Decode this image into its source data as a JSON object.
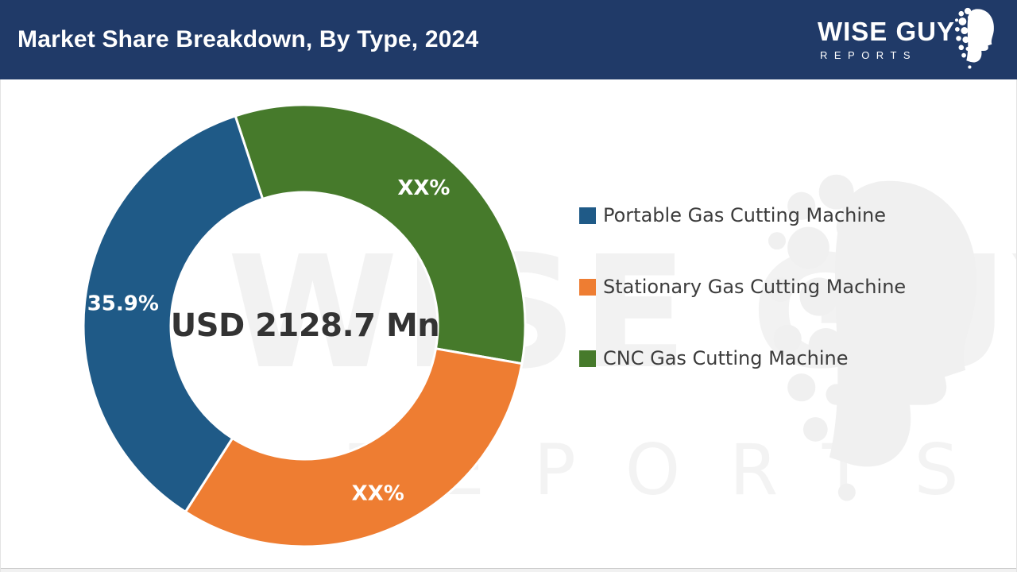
{
  "header": {
    "title": "Market Share Breakdown, By Type, 2024",
    "logo": {
      "name": "WISE GUY",
      "sub": "REPORTS"
    }
  },
  "watermark": {
    "line1": "WISE GUY",
    "line2": "REPORTS"
  },
  "chart_data": {
    "type": "donut",
    "title": "Market Share Breakdown, By Type, 2024",
    "center_label": "USD 2128.7 Mn",
    "legend_position": "right",
    "start_angle_deg": -18.2,
    "draw_order": [
      2,
      1,
      0
    ],
    "segments": [
      {
        "label": "Portable Gas Cutting Machine",
        "display": "35.9%",
        "value_pct": 35.9,
        "color": "#1F5A87"
      },
      {
        "label": "Stationary Gas Cutting Machine",
        "display": "XX%",
        "value_pct": 31.3,
        "color": "#EE7D32"
      },
      {
        "label": "CNC Gas Cutting Machine",
        "display": "XX%",
        "value_pct": 32.8,
        "color": "#467A2B"
      }
    ]
  }
}
